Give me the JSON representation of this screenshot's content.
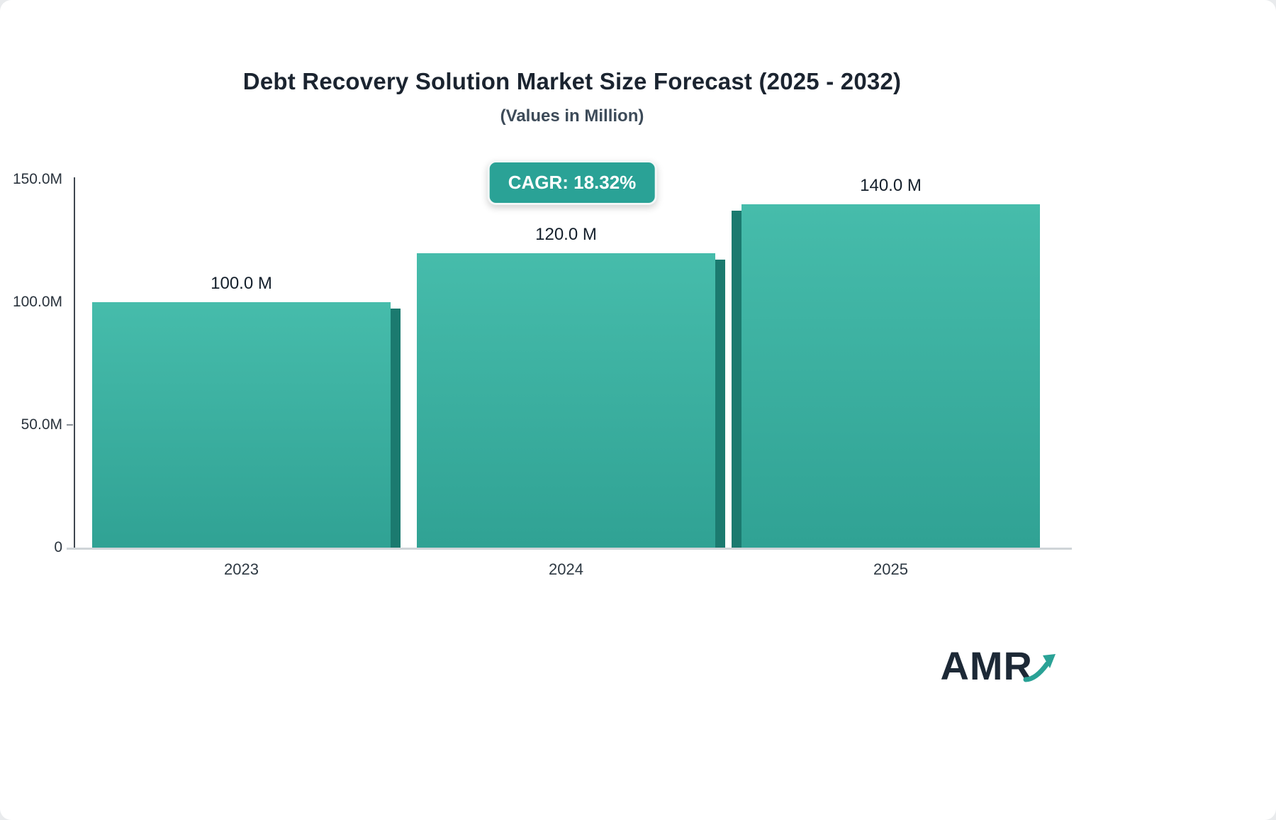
{
  "header": {
    "title": "Debt Recovery Solution Market Size Forecast (2025 - 2032)",
    "subtitle": "(Values in Million)"
  },
  "cagr_badge": {
    "label": "CAGR: 18.32%",
    "background": "#2aa296"
  },
  "chart_data": {
    "type": "bar",
    "title": "Debt Recovery Solution Market Size Forecast (2025 - 2032)",
    "subtitle": "(Values in Million)",
    "unit": "Million",
    "categories": [
      "2023",
      "2024",
      "2025"
    ],
    "values": [
      100.0,
      120.0,
      140.0
    ],
    "value_labels": [
      "100.0 M",
      "120.0 M",
      "140.0 M"
    ],
    "cagr": "18.32%",
    "xlabel": "",
    "ylabel": "",
    "ylim": [
      0,
      150
    ],
    "yticks": [
      {
        "value": 150,
        "label": "150.0M",
        "dash": false
      },
      {
        "value": 100,
        "label": "100.0M",
        "dash": false
      },
      {
        "value": 50,
        "label": "50.0M",
        "dash": true
      },
      {
        "value": 0,
        "label": "0",
        "dash": false
      }
    ],
    "grid": false,
    "legend": "none",
    "bar_color_top": "#46bcab",
    "bar_color_bottom": "#30a294",
    "bar_side_color": "#1b7a6f"
  },
  "logo": {
    "text": "AMR",
    "arrow_color": "#2aa296"
  }
}
